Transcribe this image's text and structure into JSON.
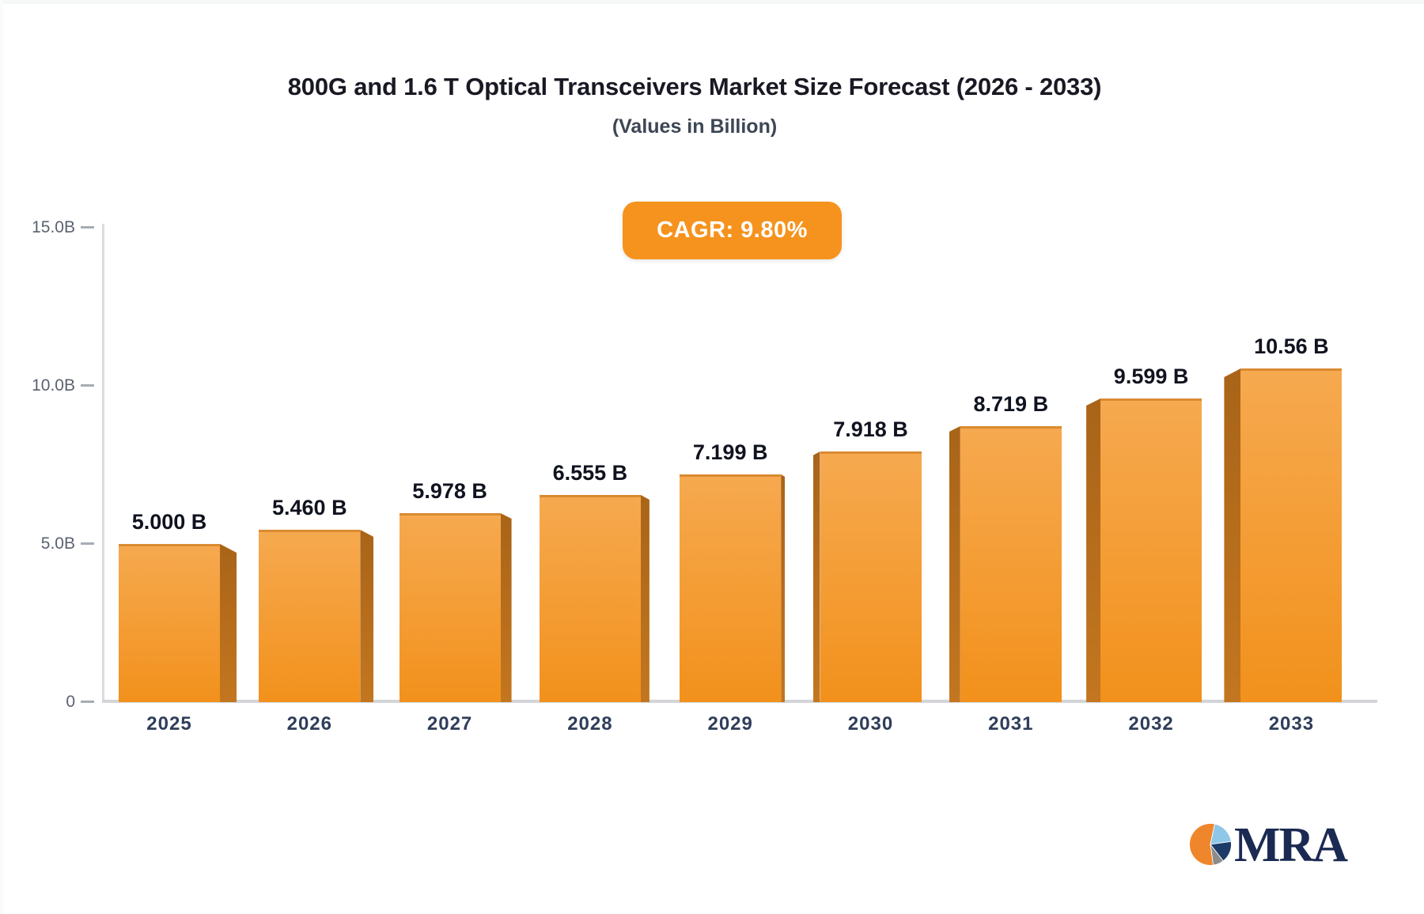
{
  "header": {
    "title": "800G and 1.6 T Optical Transceivers Market Size Forecast (2026 - 2033)",
    "subtitle": "(Values in Billion)",
    "cagr_label": "CAGR: 9.80%"
  },
  "chart_data": {
    "type": "bar",
    "title": "800G and 1.6 T Optical Transceivers Market Size Forecast (2026 - 2033)",
    "subtitle": "(Values in Billion)",
    "cagr": "9.80%",
    "categories": [
      "2025",
      "2026",
      "2027",
      "2028",
      "2029",
      "2030",
      "2031",
      "2032",
      "2033"
    ],
    "values": [
      5.0,
      5.46,
      5.978,
      6.555,
      7.199,
      7.918,
      8.719,
      9.599,
      10.56
    ],
    "value_labels": [
      "5.000 B",
      "5.460 B",
      "5.978 B",
      "6.555 B",
      "7.199 B",
      "7.918 B",
      "8.719 B",
      "9.599 B",
      "10.56 B"
    ],
    "xlabel": "",
    "ylabel": "",
    "ylim": [
      0,
      15
    ],
    "y_axis": {
      "ticks": [
        {
          "value": 0,
          "label": "0"
        },
        {
          "value": 5,
          "label": "5.0B"
        },
        {
          "value": 10,
          "label": "10.0B"
        },
        {
          "value": 15,
          "label": "15.0B"
        }
      ]
    },
    "grid": false,
    "legend": false,
    "bar_style": "3d-perspective"
  },
  "colors": {
    "bar_face_top": "#F6A94F",
    "bar_face_bottom": "#F2911C",
    "bar_top_edge": "#DA8A31",
    "bar_side_dark": "#A96418",
    "bar_side_light": "#C3761F",
    "badge_bg": "#F6931E",
    "badge_text": "#FFFFFF",
    "title_text": "#191924",
    "subtitle_text": "#3D4654",
    "axis_label": "#5A6270",
    "year_label": "#2F3E5A",
    "value_label": "#10131F",
    "axis_line": "#D3D5D9",
    "tick_dash": "#A7ACB4"
  },
  "logo": {
    "text": "MRA",
    "text_color": "#1B2A52",
    "pie_colors": {
      "orange": "#F0862B",
      "light_blue": "#8FC7E8",
      "navy": "#1C3B66",
      "gray": "#8C8C8C"
    }
  }
}
